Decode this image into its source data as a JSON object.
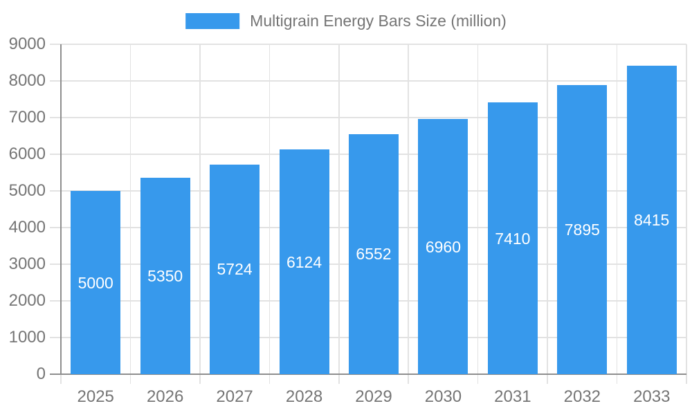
{
  "legend": {
    "label": "Multigrain Energy Bars Size (million)"
  },
  "chart_data": {
    "type": "bar",
    "title": "Multigrain Energy Bars Size (million)",
    "categories": [
      "2025",
      "2026",
      "2027",
      "2028",
      "2029",
      "2030",
      "2031",
      "2032",
      "2033"
    ],
    "values": [
      5000,
      5350,
      5724,
      6124,
      6552,
      6960,
      7410,
      7895,
      8415
    ],
    "xlabel": "",
    "ylabel": "",
    "ylim": [
      0,
      9000
    ],
    "ytick_step": 1000,
    "yticks": [
      0,
      1000,
      2000,
      3000,
      4000,
      5000,
      6000,
      7000,
      8000,
      9000
    ],
    "grid": true,
    "value_labels": "inside-center",
    "legend_position": "top-center",
    "colors": {
      "bar": "#3799EC",
      "bar_label": "#FFFFFF",
      "axis_text": "#757575",
      "axis_line": "#8E8E8E",
      "grid_line": "#E2E2E2",
      "background": "#FFFFFF"
    }
  }
}
